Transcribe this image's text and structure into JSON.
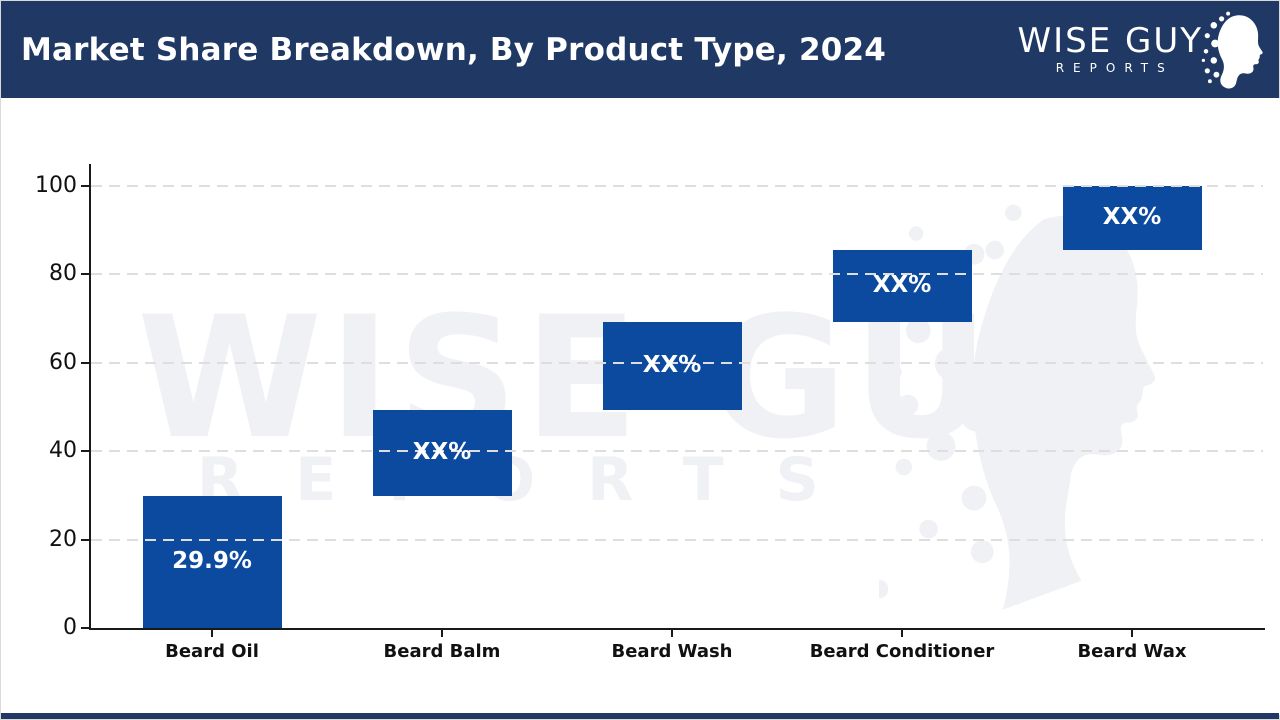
{
  "header": {
    "title": "Market Share Breakdown, By Product Type, 2024",
    "logo": {
      "line1": "WISE GUY",
      "line2": "REPORTS"
    }
  },
  "watermark": {
    "line1": "WISE GUY",
    "line2": "REPORTS"
  },
  "colors": {
    "header_bg": "#1f3864",
    "footer_bg": "#1f3864",
    "bar": "#0b4a9e",
    "grid": "#dedede",
    "axis": "#1a1a1a",
    "watermark": "#f0f1f4",
    "bar_label_text": "#ffffff"
  },
  "chart_data": {
    "type": "bar",
    "subtype": "waterfall",
    "title": "Market Share Breakdown, By Product Type, 2024",
    "categories": [
      "Beard Oil",
      "Beard Balm",
      "Beard Wash",
      "Beard Conditioner",
      "Beard Wax"
    ],
    "segments": [
      {
        "category": "Beard Oil",
        "start": 0,
        "end": 29.9,
        "label": "29.9%"
      },
      {
        "category": "Beard Balm",
        "start": 29.9,
        "end": 49.2,
        "label": "XX%"
      },
      {
        "category": "Beard Wash",
        "start": 49.2,
        "end": 69.1,
        "label": "XX%"
      },
      {
        "category": "Beard Conditioner",
        "start": 69.1,
        "end": 85.4,
        "label": "XX%"
      },
      {
        "category": "Beard Wax",
        "start": 85.4,
        "end": 100,
        "label": "XX%"
      }
    ],
    "yticks": [
      0,
      20,
      40,
      60,
      80,
      100
    ],
    "ylim": [
      0,
      105
    ],
    "xlabel": "",
    "ylabel": "",
    "grid": "horizontal-dashed",
    "legend": "none",
    "bar_color": "#0b4a9e"
  }
}
